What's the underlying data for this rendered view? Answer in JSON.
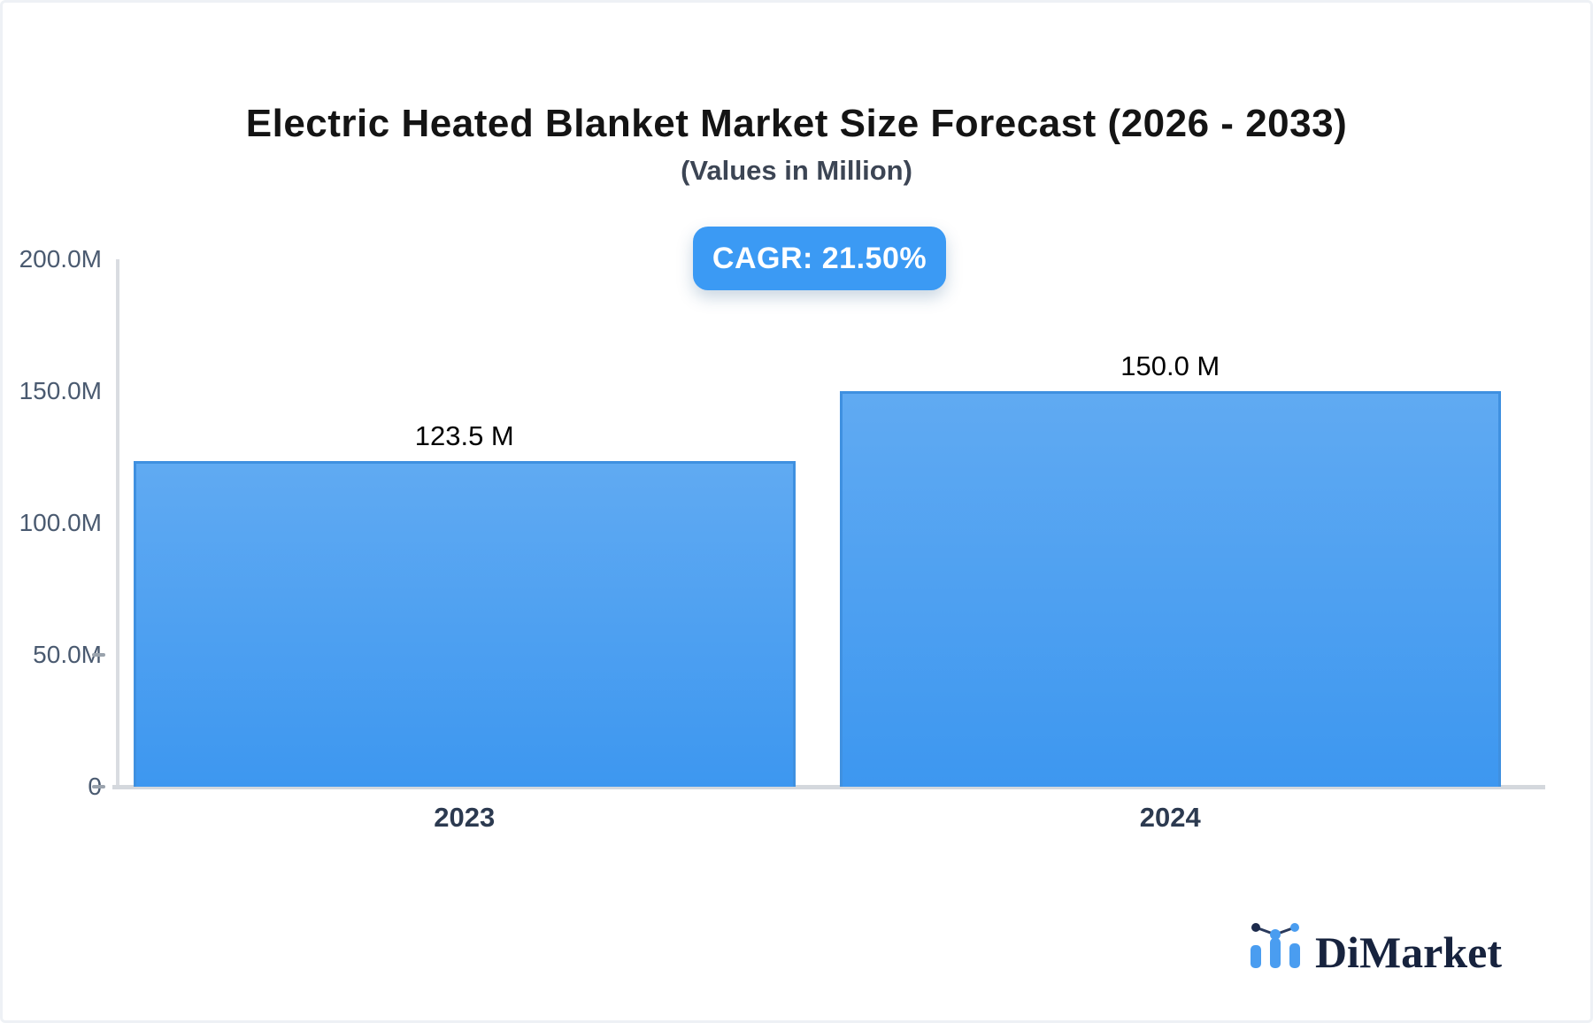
{
  "header": {
    "title": "Electric Heated Blanket Market Size Forecast (2026 - 2033)",
    "subtitle": "(Values in Million)",
    "cagr_badge": "CAGR: 21.50%"
  },
  "chart_data": {
    "type": "bar",
    "title": "Electric Heated Blanket Market Size Forecast (2026 - 2033)",
    "subtitle": "(Values in Million)",
    "categories": [
      "2023",
      "2024"
    ],
    "values": [
      123.5,
      150.0
    ],
    "data_labels": [
      "123.5 M",
      "150.0 M"
    ],
    "xlabel": "",
    "ylabel": "",
    "ylim": [
      0,
      200
    ],
    "y_ticks": [
      {
        "value": 200,
        "label": "200.0M",
        "dash": false
      },
      {
        "value": 150,
        "label": "150.0M",
        "dash": false
      },
      {
        "value": 100,
        "label": "100.0M",
        "dash": false
      },
      {
        "value": 50,
        "label": "50.0M",
        "dash": true
      },
      {
        "value": 0,
        "label": "0",
        "dash": true
      }
    ],
    "grid": false,
    "legend_position": "none",
    "bar_color_top": "#60aaf2",
    "bar_color_bottom": "#3d97f0",
    "bar_border_color": "#3f90e0"
  },
  "badge_color": "#3b9af4",
  "logo": {
    "text": "DiMarket",
    "icon": "bar-chart-with-dots-icon",
    "text_color": "#17233e",
    "icon_blue": "#4a9df0",
    "icon_navy": "#1d2b4c"
  }
}
